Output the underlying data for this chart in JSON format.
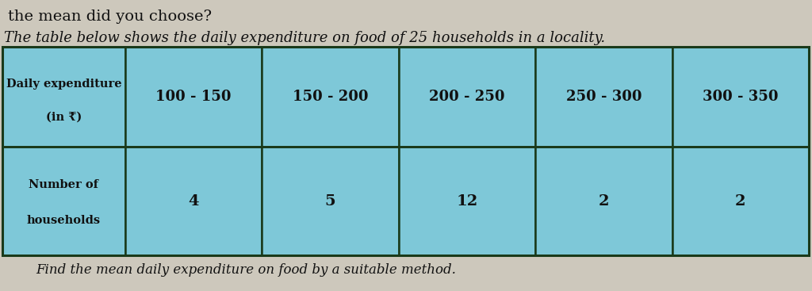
{
  "title_line1": "the mean did you choose?",
  "title_line2": "The table below shows the daily expenditure on food of 25 households in a locality.",
  "footer": "Find the mean daily expenditure on food by a suitable method.",
  "col_header_label1": "Daily expenditure",
  "col_header_label2": "(in ₹)",
  "row_header_label1": "Number of",
  "row_header_label2": "households",
  "expenditure_ranges": [
    "100 - 150",
    "150 - 200",
    "200 - 250",
    "250 - 300",
    "300 - 350"
  ],
  "households": [
    "4",
    "5",
    "12",
    "2",
    "2"
  ],
  "table_bg_color": "#7EC8D8",
  "table_border_color": "#1a3a1a",
  "page_bg_color": "#cdc8bc",
  "text_color": "#111111",
  "header_font_size": 10.5,
  "cell_font_size": 13,
  "title1_font_size": 14,
  "title2_font_size": 13,
  "footer_font_size": 12
}
